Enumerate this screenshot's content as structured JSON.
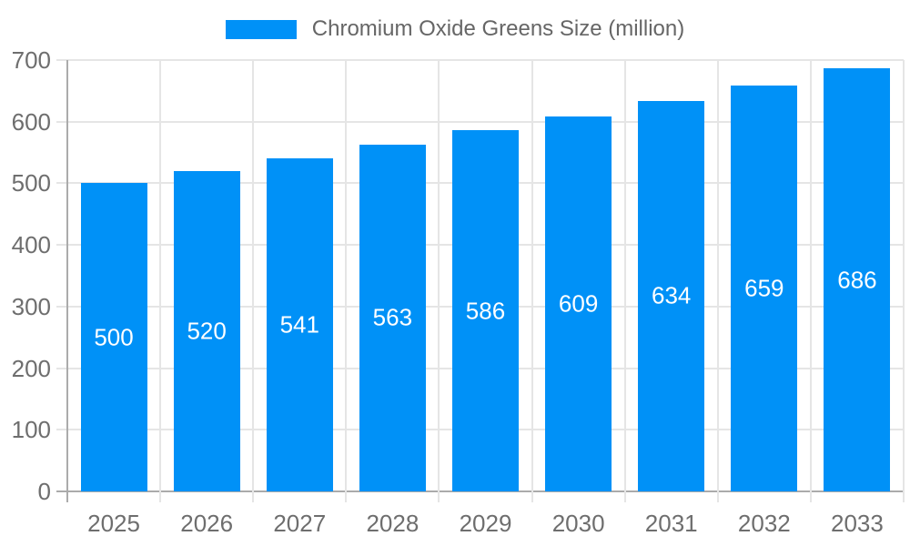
{
  "legend": {
    "label": "Chromium Oxide Greens Size (million)"
  },
  "colors": {
    "bar": "#0091F7",
    "grid": "#E5E5E5",
    "axis": "#ABABAB",
    "tick_text": "#6E6E6E",
    "legend_text": "#666666",
    "bar_label_text": "#FFFFFF",
    "background": "#FFFFFF"
  },
  "chart_data": {
    "type": "bar",
    "title": "",
    "xlabel": "",
    "ylabel": "",
    "categories": [
      "2025",
      "2026",
      "2027",
      "2028",
      "2029",
      "2030",
      "2031",
      "2032",
      "2033"
    ],
    "series": [
      {
        "name": "Chromium Oxide Greens Size (million)",
        "color": "#0091F7",
        "values": [
          500,
          520,
          541,
          563,
          586,
          609,
          634,
          659,
          686
        ]
      }
    ],
    "bar_value_labels": [
      500,
      520,
      541,
      563,
      586,
      609,
      634,
      659,
      686
    ],
    "ylim": [
      0,
      700
    ],
    "ytick_step": 100,
    "yticks": [
      0,
      100,
      200,
      300,
      400,
      500,
      600,
      700
    ],
    "grid": true,
    "legend_position": "top"
  }
}
